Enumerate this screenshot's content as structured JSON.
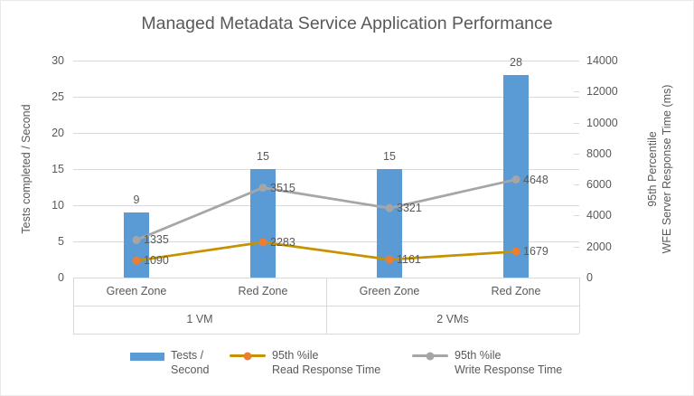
{
  "chart_data": {
    "type": "combo_bar_line",
    "title": "Managed Metadata Service Application Performance",
    "categories": [
      "Green Zone",
      "Red Zone",
      "Green Zone",
      "Red Zone"
    ],
    "category_groups": [
      {
        "label": "1 VM",
        "span": 2
      },
      {
        "label": "2 VMs",
        "span": 2
      }
    ],
    "left_axis": {
      "title": "Tests completed / Second",
      "min": 0,
      "max": 30,
      "step": 5
    },
    "right_axis": {
      "title_lines": [
        "95th Percentile",
        "WFE Server Response Time (ms)"
      ],
      "min": 0,
      "max": 14000,
      "step": 2000
    },
    "grid": true,
    "legend_position": "bottom",
    "series": [
      {
        "name": "Tests / Second",
        "type": "bar",
        "axis": "left",
        "color": "#5B9BD5",
        "values": [
          9,
          15,
          15,
          28
        ],
        "data_labels": [
          "9",
          "15",
          "15",
          "28"
        ]
      },
      {
        "name": "95th %ile Read Response Time",
        "type": "line",
        "axis": "right",
        "line_color": "#C79200",
        "marker_color": "#ED7D31",
        "values": [
          1090,
          2283,
          1161,
          1679
        ],
        "data_labels": [
          "1090",
          "2283",
          "1161",
          "1679"
        ]
      },
      {
        "name": "95th %ile Write Response Time",
        "type": "line",
        "axis": "right",
        "line_color": "#A6A6A6",
        "marker_color": "#A5A5A5",
        "values": [
          1335,
          3515,
          3321,
          4648
        ],
        "data_labels": [
          "1335",
          "3515",
          "3321",
          "4648"
        ],
        "rendered_stacked_on_series": 1
      }
    ],
    "legend": {
      "items": [
        {
          "swatch": "bar",
          "line1": "Tests /",
          "line2": "Second"
        },
        {
          "swatch": "line-marker",
          "line1": "95th %ile",
          "line2": "Read Response Time"
        },
        {
          "swatch": "line-marker",
          "line1": "95th %ile",
          "line2": "Write Response Time"
        }
      ]
    },
    "colors": {
      "text": "#595959",
      "grid": "#D9D9D9"
    }
  }
}
